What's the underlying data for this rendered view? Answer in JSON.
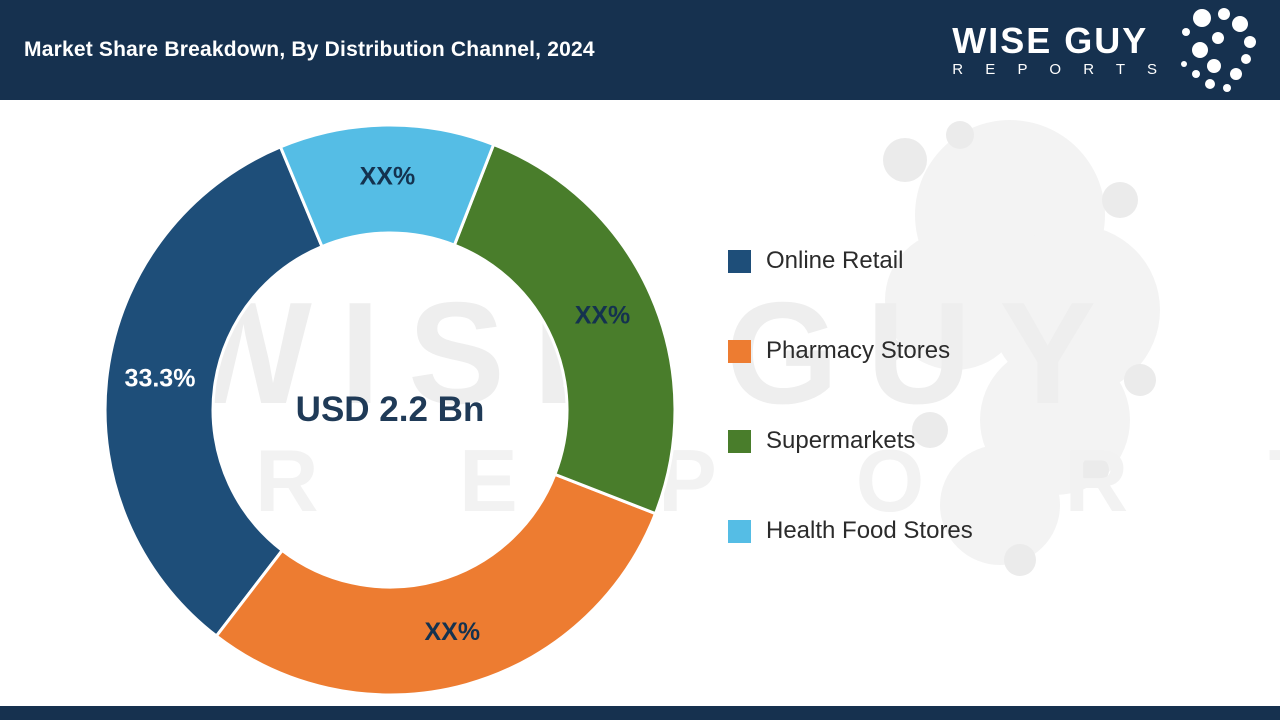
{
  "header": {
    "title": "Market Share Breakdown, By Distribution Channel, 2024",
    "bg_color": "#16314f",
    "logo": {
      "line1": "WISE GUY",
      "line2": "R E P O R T S"
    }
  },
  "watermark": {
    "line1": "WISE GUY",
    "line2": "R E P O R T S"
  },
  "chart_data": {
    "type": "pie",
    "subtype": "donut",
    "title": "Market Share Breakdown, By Distribution Channel, 2024",
    "center_label": "USD 2.2 Bn",
    "legend_position": "right",
    "start_angle_deg": 112.6,
    "units": "percent",
    "slices": [
      {
        "label": "Online Retail",
        "value": 33.3,
        "display": "33.3%",
        "color": "#1e4e79",
        "label_color": "#ffffff"
      },
      {
        "label": "Pharmacy Stores",
        "value": 29.5,
        "display": "XX%",
        "color": "#ed7c31",
        "label_color": "#14324f"
      },
      {
        "label": "Supermarkets",
        "value": 25.0,
        "display": "XX%",
        "color": "#497d2b",
        "label_color": "#14324f"
      },
      {
        "label": "Health Food Stores",
        "value": 12.2,
        "display": "XX%",
        "color": "#55bde5",
        "label_color": "#14324f"
      }
    ]
  }
}
